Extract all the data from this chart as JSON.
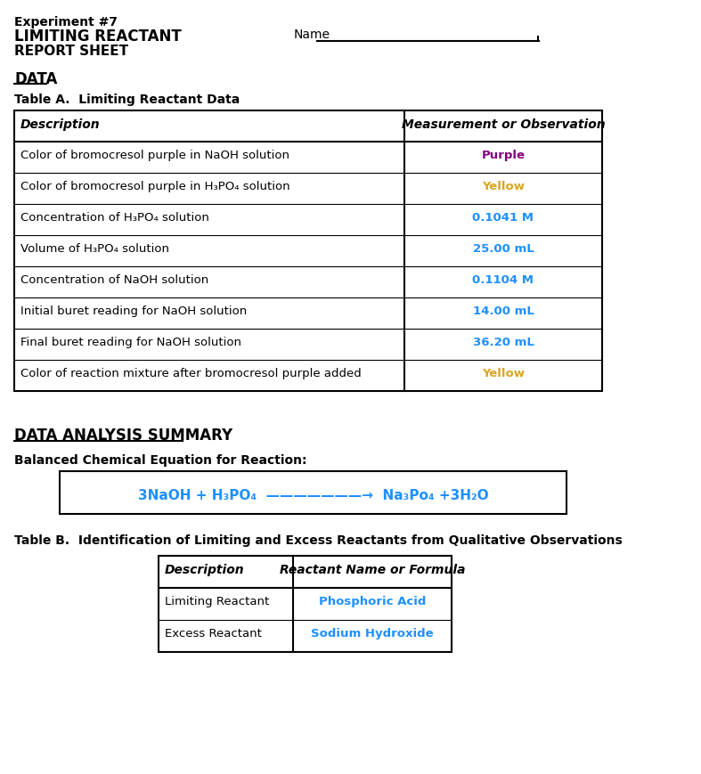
{
  "title_line1": "Experiment #7",
  "title_line2": "LIMITING REACTANT",
  "title_line3": "REPORT SHEET",
  "name_label": "Name",
  "section_data": "DATA",
  "table_a_title": "Table A.  Limiting Reactant Data",
  "table_a_headers": [
    "Description",
    "Measurement or Observation"
  ],
  "table_a_rows": [
    [
      "Color of bromocresol purple in NaOH solution",
      "Purple"
    ],
    [
      "Color of bromocresol purple in H₃PO₄ solution",
      "Yellow"
    ],
    [
      "Concentration of H₃PO₄ solution",
      "0.1041 M"
    ],
    [
      "Volume of H₃PO₄ solution",
      "25.00 mL"
    ],
    [
      "Concentration of NaOH solution",
      "0.1104 M"
    ],
    [
      "Initial buret reading for NaOH solution",
      "14.00 mL"
    ],
    [
      "Final buret reading for NaOH solution",
      "36.20 mL"
    ],
    [
      "Color of reaction mixture after bromocresol purple added",
      "Yellow"
    ]
  ],
  "table_a_row_colors": [
    "Purple",
    "Yellow",
    "0.1041 M",
    "25.00 mL",
    "0.1104 M",
    "14.00 mL",
    "36.20 mL",
    "Yellow"
  ],
  "blue_color": "#1E90FF",
  "purple_color": "#800080",
  "yellow_color": "#DAA520",
  "section_analysis": "DATA ANALYSIS SUMMARY",
  "balanced_eq_label": "Balanced Chemical Equation for Reaction:",
  "equation_text": "3NaOH + H₃PO₄  ———————→  Na₃Po₄ +3H₂O",
  "table_b_title": "Table B.  Identification of Limiting and Excess Reactants from Qualitative Observations",
  "table_b_headers": [
    "Description",
    "Reactant Name or Formula"
  ],
  "table_b_rows": [
    [
      "Limiting Reactant",
      "Phosphoric Acid"
    ],
    [
      "Excess Reactant",
      "Sodium Hydroxide"
    ]
  ],
  "bg_color": "#FFFFFF",
  "text_color": "#000000"
}
